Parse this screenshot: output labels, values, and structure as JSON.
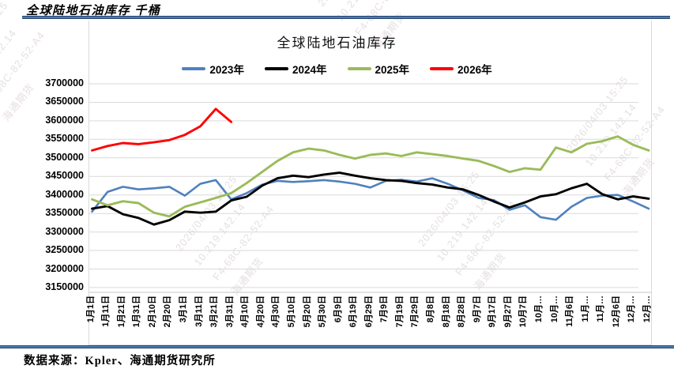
{
  "header": {
    "title": "全球陆地石油库存 千桶"
  },
  "chart": {
    "title": "全球陆地石油库存"
  },
  "source": {
    "text": "数据来源：Kpler、海通期货研究所"
  },
  "watermark": {
    "lines": [
      "2026/04/03 15:25",
      "10.219.142.14",
      "F4-68C-82-52-A4",
      "海通期货"
    ]
  },
  "chart_data": {
    "type": "line",
    "title": "全球陆地石油库存",
    "unit": "千桶",
    "legend_position": "top",
    "grid": true,
    "ylim": [
      3150000,
      3700000
    ],
    "ytick_step": 50000,
    "yticks": [
      "3700000",
      "3650000",
      "3600000",
      "3550000",
      "3500000",
      "3450000",
      "3400000",
      "3350000",
      "3300000",
      "3250000",
      "3200000",
      "3150000"
    ],
    "categories": [
      "1月1日",
      "1月11日",
      "1月21日",
      "1月31日",
      "2月10日",
      "2月20日",
      "3月1日",
      "3月11日",
      "3月21日",
      "3月31日",
      "4月10日",
      "4月20日",
      "4月30日",
      "5月10日",
      "5月20日",
      "5月30日",
      "6月9日",
      "6月19日",
      "6月29日",
      "7月9日",
      "7月19日",
      "7月29日",
      "8月8日",
      "8月18日",
      "8月28日",
      "9月7日",
      "9月17日",
      "9月27日",
      "10月7日",
      "10月…",
      "10月…",
      "11月6日",
      "11月…",
      "11月…",
      "12月6日",
      "12月…",
      "12月…"
    ],
    "series": [
      {
        "name": "2023年",
        "color": "#4F81BD",
        "values": [
          3355000,
          3408000,
          3422000,
          3415000,
          3418000,
          3422000,
          3398000,
          3430000,
          3440000,
          3388000,
          3405000,
          3428000,
          3438000,
          3435000,
          3437000,
          3440000,
          3436000,
          3430000,
          3420000,
          3438000,
          3441000,
          3436000,
          3445000,
          3430000,
          3412000,
          3392000,
          3386000,
          3360000,
          3372000,
          3340000,
          3333000,
          3368000,
          3392000,
          3398000,
          3400000,
          3382000,
          3363000
        ]
      },
      {
        "name": "2024年",
        "color": "#000000",
        "values": [
          3363000,
          3370000,
          3348000,
          3338000,
          3320000,
          3332000,
          3355000,
          3352000,
          3355000,
          3385000,
          3395000,
          3425000,
          3445000,
          3452000,
          3448000,
          3455000,
          3460000,
          3452000,
          3445000,
          3440000,
          3438000,
          3432000,
          3428000,
          3420000,
          3415000,
          3400000,
          3382000,
          3366000,
          3380000,
          3396000,
          3402000,
          3418000,
          3430000,
          3402000,
          3388000,
          3396000,
          3390000
        ]
      },
      {
        "name": "2025年",
        "color": "#9BBB59",
        "values": [
          3388000,
          3372000,
          3383000,
          3378000,
          3352000,
          3342000,
          3368000,
          3380000,
          3392000,
          3405000,
          3432000,
          3462000,
          3492000,
          3515000,
          3525000,
          3520000,
          3508000,
          3498000,
          3508000,
          3512000,
          3505000,
          3515000,
          3510000,
          3505000,
          3498000,
          3492000,
          3478000,
          3462000,
          3472000,
          3468000,
          3528000,
          3515000,
          3538000,
          3545000,
          3558000,
          3535000,
          3520000
        ]
      },
      {
        "name": "2026年",
        "color": "#FF0000",
        "values": [
          3520000,
          3532000,
          3540000,
          3537000,
          3542000,
          3548000,
          3562000,
          3585000,
          3632000,
          3597000,
          null,
          null,
          null,
          null,
          null,
          null,
          null,
          null,
          null,
          null,
          null,
          null,
          null,
          null,
          null,
          null,
          null,
          null,
          null,
          null,
          null,
          null,
          null,
          null,
          null,
          null,
          null
        ]
      }
    ]
  }
}
